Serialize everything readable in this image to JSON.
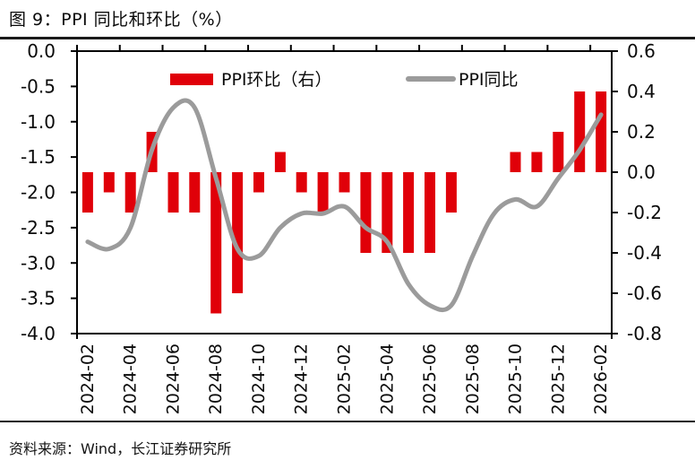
{
  "page": {
    "title": "图 9：PPI 同比和环比（%）",
    "source": "资料来源：Wind，长江证券研究所"
  },
  "legend": {
    "bar_label": "PPI环比（右）",
    "line_label": "PPI同比"
  },
  "chart_data": {
    "type": "combo",
    "title": "图 9：PPI 同比和环比（%）",
    "grid": false,
    "legend_position": "top-inside",
    "colors": {
      "bar": "#e00009",
      "line": "#9b9b9b",
      "axis": "#000000"
    },
    "categories": [
      "2024-02",
      "2024-03",
      "2024-04",
      "2024-05",
      "2024-06",
      "2024-07",
      "2024-08",
      "2024-09",
      "2024-10",
      "2024-11",
      "2024-12",
      "2025-01",
      "2025-02",
      "2025-03",
      "2025-04",
      "2025-05",
      "2025-06",
      "2025-07",
      "2025-08",
      "2025-09",
      "2025-10",
      "2025-11",
      "2025-12",
      "2026-01",
      "2026-02"
    ],
    "series": [
      {
        "name": "PPI环比（右）",
        "type": "bar",
        "axis": "right",
        "values": [
          -0.2,
          -0.1,
          -0.2,
          0.2,
          -0.2,
          -0.2,
          -0.7,
          -0.6,
          -0.1,
          0.1,
          -0.1,
          -0.2,
          -0.1,
          -0.4,
          -0.4,
          -0.4,
          -0.4,
          -0.2,
          0.0,
          0.0,
          0.1,
          0.1,
          0.2,
          0.4,
          0.4
        ]
      },
      {
        "name": "PPI同比",
        "type": "line",
        "axis": "left",
        "values": [
          -2.7,
          -2.8,
          -2.5,
          -1.4,
          -0.8,
          -0.8,
          -1.8,
          -2.8,
          -2.9,
          -2.5,
          -2.3,
          -2.3,
          -2.2,
          -2.5,
          -2.7,
          -3.3,
          -3.6,
          -3.6,
          -2.9,
          -2.3,
          -2.1,
          -2.2,
          -1.8,
          -1.4,
          -0.9
        ]
      }
    ],
    "left_axis": {
      "max": 0.0,
      "min": -4.0,
      "step": 0.5,
      "tick_labels": [
        "0.0",
        "-0.5",
        "-1.0",
        "-1.5",
        "-2.0",
        "-2.5",
        "-3.0",
        "-3.5",
        "-4.0"
      ]
    },
    "right_axis": {
      "max": 0.6,
      "min": -0.8,
      "step": 0.2,
      "tick_labels": [
        "0.6",
        "0.4",
        "0.2",
        "0.0",
        "-0.2",
        "-0.4",
        "-0.6",
        "-0.8"
      ]
    },
    "x_axis": {
      "label_every": 2,
      "tick_labels": [
        "2024-02",
        "2024-04",
        "2024-06",
        "2024-08",
        "2024-10",
        "2024-12",
        "2025-02",
        "2025-04",
        "2025-06",
        "2025-08",
        "2025-10",
        "2025-12",
        "2026-02"
      ]
    }
  }
}
